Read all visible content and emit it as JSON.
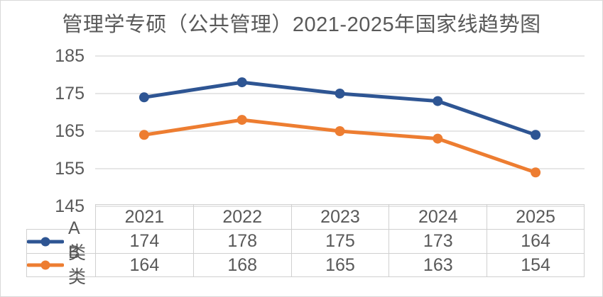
{
  "page": {
    "background": "#ffffff",
    "frame_border_color": "#d9d9d9"
  },
  "chart_data": {
    "type": "line",
    "title": "管理学专硕（公共管理）2021-2025年国家线趋势图",
    "categories": [
      "2021",
      "2022",
      "2023",
      "2024",
      "2025"
    ],
    "series": [
      {
        "name": "A类",
        "values": [
          174,
          178,
          175,
          173,
          164
        ],
        "color": "#2e5593"
      },
      {
        "name": "B类",
        "values": [
          164,
          168,
          165,
          163,
          154
        ],
        "color": "#ed7d31"
      }
    ],
    "xlabel": "",
    "ylabel": "",
    "ylim": [
      145,
      185
    ],
    "yticks": [
      185,
      175,
      165,
      155,
      145
    ],
    "grid": true,
    "gridline_color": "#e6e6e6",
    "legend_position": "data-table-left-keys",
    "data_table": true,
    "text_color": "#595959",
    "table_border_color": "#d0d0d0",
    "marker": "circle"
  }
}
